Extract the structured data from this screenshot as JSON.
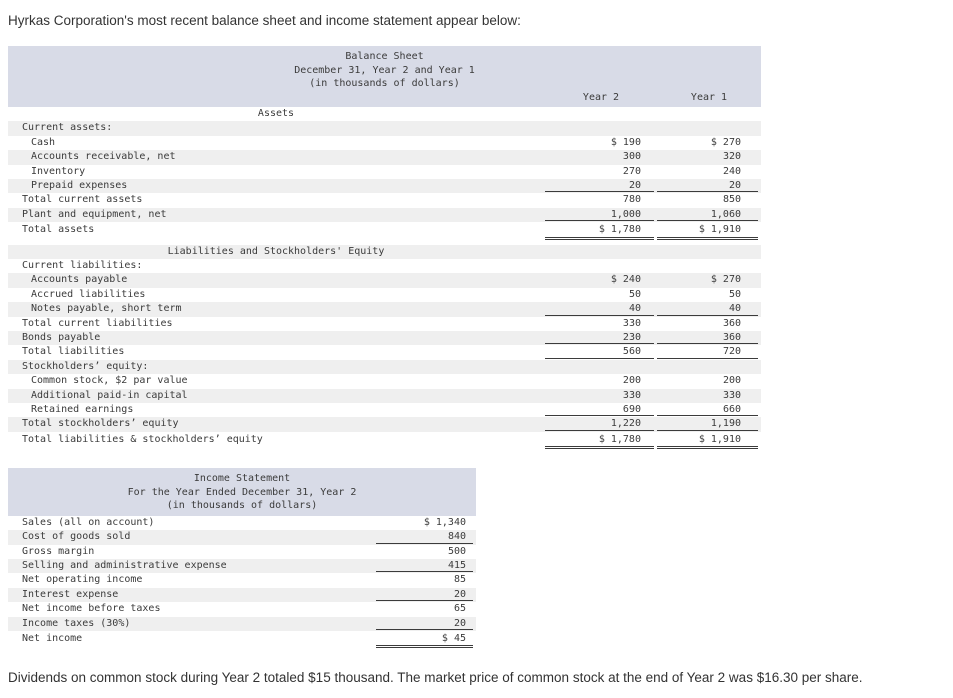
{
  "intro": "Hyrkas Corporation's most recent balance sheet and income statement appear below:",
  "balance_sheet": {
    "title_lines": [
      "Balance Sheet",
      "December 31, Year 2 and Year 1",
      "(in thousands of dollars)"
    ],
    "col_headers": [
      "Year 2",
      "Year 1"
    ],
    "rows": [
      {
        "label": "Assets",
        "center": true
      },
      {
        "label": "Current assets:",
        "indent": 1
      },
      {
        "label": "Cash",
        "indent": 2,
        "y2": "$ 190",
        "y1": "$ 270"
      },
      {
        "label": "Accounts receivable, net",
        "indent": 2,
        "y2": "300",
        "y1": "320"
      },
      {
        "label": "Inventory",
        "indent": 2,
        "y2": "270",
        "y1": "240"
      },
      {
        "label": "Prepaid expenses",
        "indent": 2,
        "y2": "20",
        "y1": "20",
        "underline": "single"
      },
      {
        "label": "Total current assets",
        "indent": 1,
        "y2": "780",
        "y1": "850"
      },
      {
        "label": "Plant and equipment, net",
        "indent": 1,
        "y2": "1,000",
        "y1": "1,060",
        "underline": "single"
      },
      {
        "label": "Total assets",
        "indent": 1,
        "y2": "$ 1,780",
        "y1": "$ 1,910",
        "underline": "double",
        "tall": true
      },
      {
        "label": "Liabilities and Stockholders' Equity",
        "center": true
      },
      {
        "label": "Current liabilities:",
        "indent": 1
      },
      {
        "label": "Accounts payable",
        "indent": 2,
        "y2": "$ 240",
        "y1": "$ 270"
      },
      {
        "label": "Accrued liabilities",
        "indent": 2,
        "y2": "50",
        "y1": "50"
      },
      {
        "label": "Notes payable, short term",
        "indent": 2,
        "y2": "40",
        "y1": "40",
        "underline": "single"
      },
      {
        "label": "Total current liabilities",
        "indent": 1,
        "y2": "330",
        "y1": "360"
      },
      {
        "label": "Bonds payable",
        "indent": 1,
        "y2": "230",
        "y1": "360",
        "underline": "single"
      },
      {
        "label": "Total liabilities",
        "indent": 1,
        "y2": "560",
        "y1": "720",
        "underline": "single"
      },
      {
        "label": "Stockholders’ equity:",
        "indent": 1
      },
      {
        "label": "Common stock, $2 par value",
        "indent": 2,
        "y2": "200",
        "y1": "200"
      },
      {
        "label": "Additional paid-in capital",
        "indent": 2,
        "y2": "330",
        "y1": "330"
      },
      {
        "label": "Retained earnings",
        "indent": 2,
        "y2": "690",
        "y1": "660",
        "underline": "single"
      },
      {
        "label": "Total stockholders’ equity",
        "indent": 1,
        "y2": "1,220",
        "y1": "1,190",
        "underline": "single"
      },
      {
        "label": "Total liabilities & stockholders’ equity",
        "indent": 1,
        "y2": "$ 1,780",
        "y1": "$ 1,910",
        "underline": "double",
        "tall": true
      }
    ]
  },
  "income_statement": {
    "title_lines": [
      "Income Statement",
      "For the Year Ended December 31, Year 2",
      "(in thousands of dollars)"
    ],
    "rows": [
      {
        "label": "Sales (all on account)",
        "indent": 1,
        "val": "$ 1,340"
      },
      {
        "label": "Cost of goods sold",
        "indent": 1,
        "val": "840",
        "underline": "single"
      },
      {
        "label": "Gross margin",
        "indent": 1,
        "val": "500"
      },
      {
        "label": "Selling and administrative expense",
        "indent": 1,
        "val": "415",
        "underline": "single"
      },
      {
        "label": "Net operating income",
        "indent": 1,
        "val": "85"
      },
      {
        "label": "Interest expense",
        "indent": 1,
        "val": "20",
        "underline": "single"
      },
      {
        "label": "Net income before taxes",
        "indent": 1,
        "val": "65"
      },
      {
        "label": "Income taxes (30%)",
        "indent": 1,
        "val": "20",
        "underline": "single"
      },
      {
        "label": "Net income",
        "indent": 1,
        "val": "$ 45",
        "underline": "double",
        "tall": true
      }
    ]
  },
  "footer": "Dividends on common stock during Year 2 totaled $15 thousand. The market price of common stock at the end of Year 2 was $16.30 per share.",
  "colors": {
    "header_bg": "#d8dbe7",
    "stripe_bg": "#efefef",
    "rule": "#3b3b3b"
  }
}
